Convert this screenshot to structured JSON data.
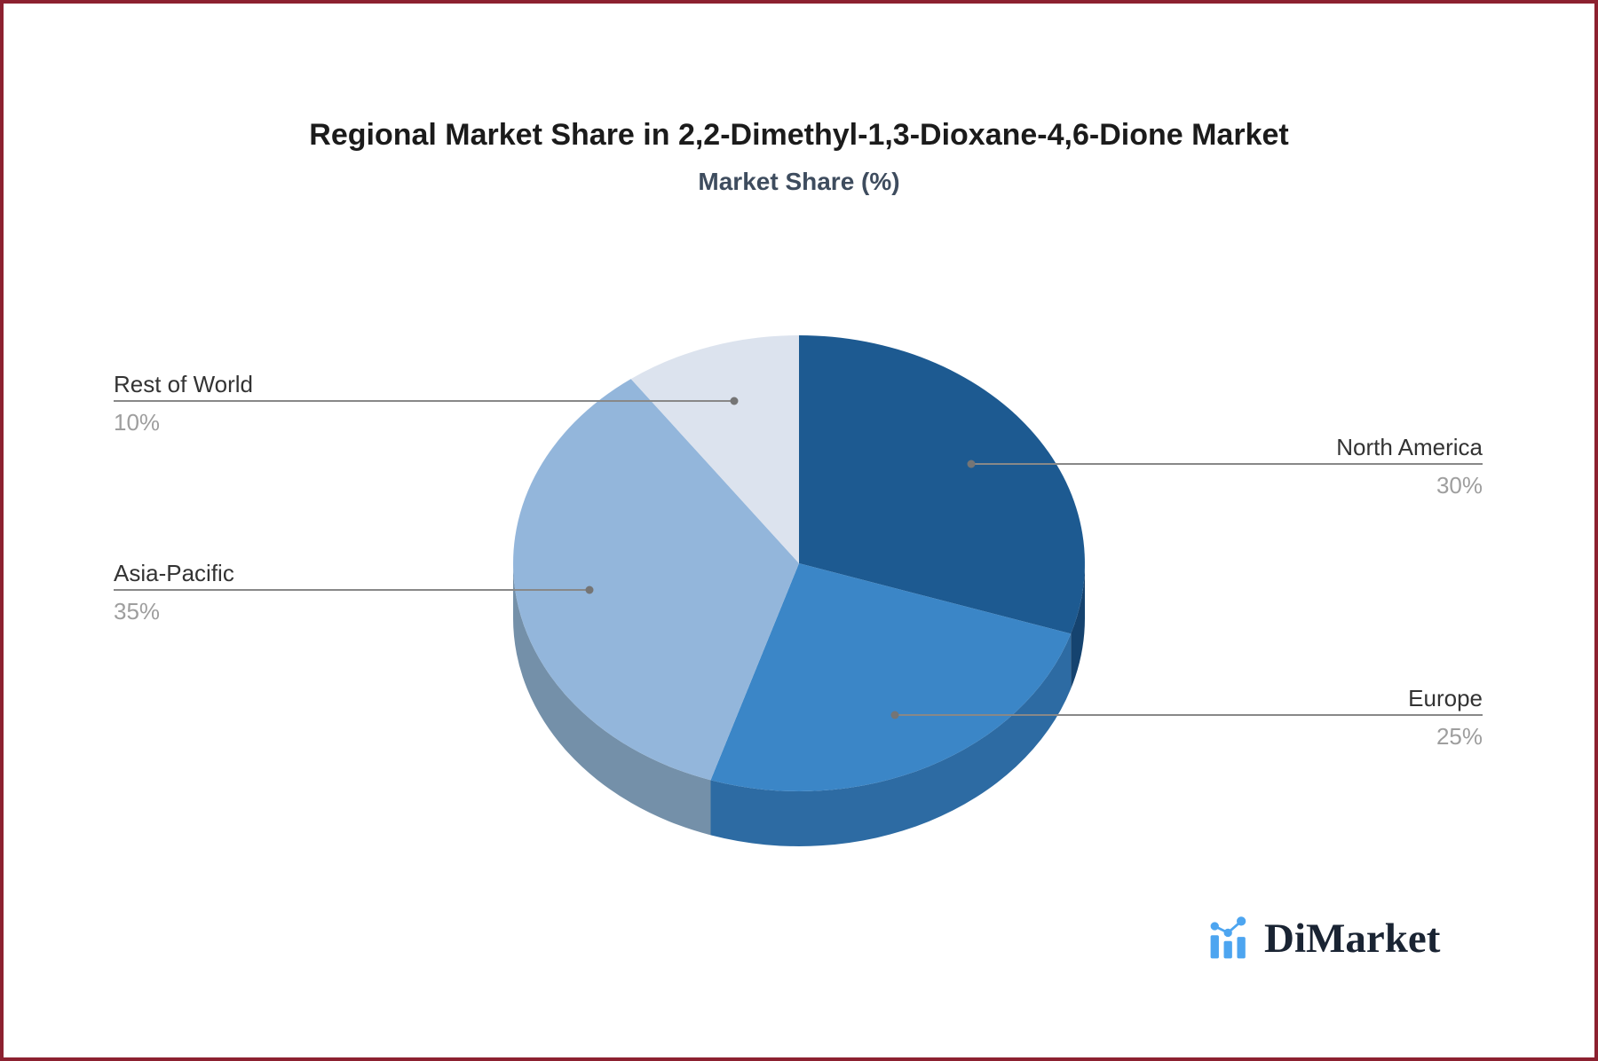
{
  "chart_data": {
    "type": "pie",
    "title": "Regional Market Share in 2,2-Dimethyl-1,3-Dioxane-4,6-Dione Market",
    "value_label": "Market Share (%)",
    "labels": [
      "North America",
      "Europe",
      "Asia-Pacific",
      "Rest of World"
    ],
    "values": [
      30,
      25,
      35,
      10
    ],
    "percent_labels": [
      "30%",
      "25%",
      "35%",
      "10%"
    ],
    "colors_top": [
      "#1d5a91",
      "#3b86c7",
      "#93b6db",
      "#dce3ee"
    ],
    "colors_side": [
      "#15436f",
      "#2d6ba3",
      "#7490a9",
      "#b9c6da"
    ],
    "start_angle": "top",
    "direction": "clockwise",
    "style": "3d-pie",
    "legend_position": "callout-labels"
  },
  "branding": {
    "logo_text": "DiMarket",
    "logo_icon": "bar-chart-trend-icon"
  },
  "theme": {
    "title_color": "#1b1b1b",
    "subtitle_color": "#3e4c5e",
    "label_text_color": "#333333",
    "percent_text_color": "#9e9e9e",
    "leader_line_color": "#888888",
    "leader_dot_color": "#757575",
    "logo_blue": "#4da5f0",
    "logo_navy": "#1a2433",
    "frame_color": "#8c2130",
    "background": "#ffffff"
  }
}
